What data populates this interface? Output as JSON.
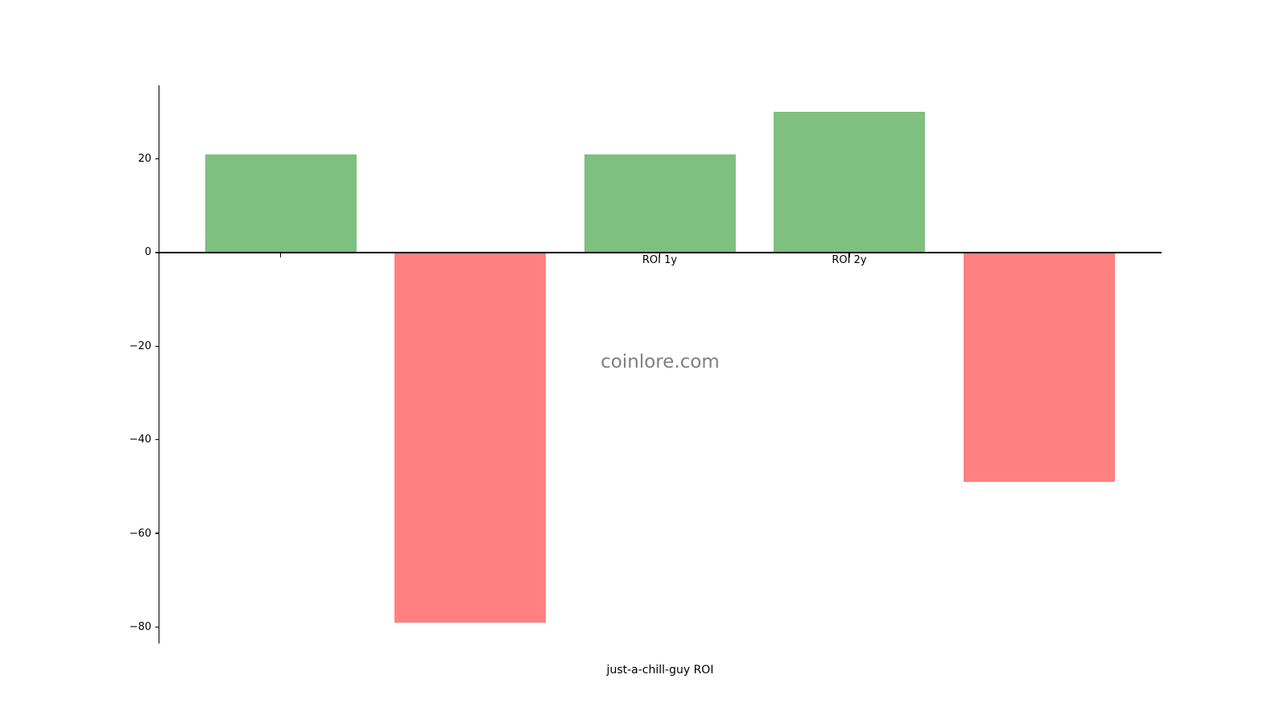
{
  "page": {
    "watermark": "coinlore.com",
    "footer_title": "just-a-chill-guy ROI"
  },
  "chart_data": {
    "type": "bar",
    "title": "",
    "xlabel": "just-a-chill-guy ROI",
    "ylabel": "",
    "categories": [
      "",
      "",
      "ROI 1y",
      "ROI 2y",
      ""
    ],
    "values": [
      21,
      -79,
      21,
      30,
      -49
    ],
    "bar_colors": [
      "#7fbf7f",
      "#ff8080",
      "#7fbf7f",
      "#7fbf7f",
      "#ff8080"
    ],
    "positive_color": "#7fbf7f",
    "negative_color": "#ff8080",
    "y_ticks": [
      20,
      0,
      -20,
      -40,
      -60,
      -80
    ],
    "y_tick_labels": [
      "20",
      "0",
      "−20",
      "−40",
      "−60",
      "−80"
    ],
    "x_ticks_at_indices": [
      0,
      2,
      3
    ],
    "ylim": [
      -83.5,
      35.7
    ],
    "grid": false,
    "legend": null,
    "axis_color": "#000000",
    "watermark": "coinlore.com",
    "watermark_color": "#7f7f7f"
  }
}
